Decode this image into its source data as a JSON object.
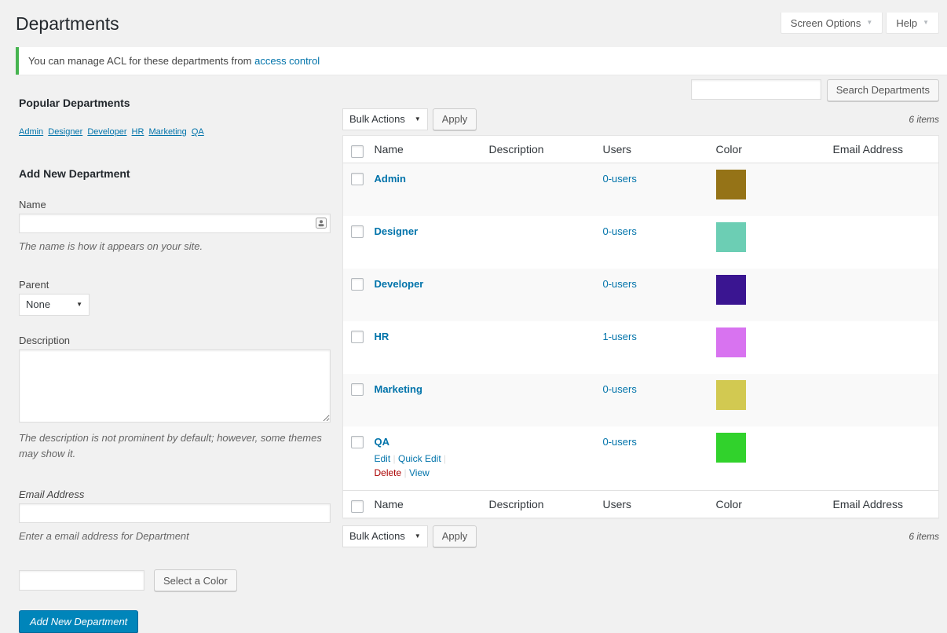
{
  "theme": {
    "background": "#f1f1f1",
    "link_color": "#0073aa",
    "notice_accent": "#46b450",
    "primary_button": "#0085ba"
  },
  "header": {
    "page_title": "Departments",
    "screen_options_label": "Screen Options",
    "help_label": "Help"
  },
  "notice": {
    "message": "You can manage ACL for these departments from",
    "link_label": "access control"
  },
  "sidebar": {
    "popular_title": "Popular Departments",
    "popular_tags": [
      "Admin",
      "Designer",
      "Developer",
      "HR",
      "Marketing",
      "QA"
    ],
    "form": {
      "title": "Add New Department",
      "name_label": "Name",
      "name_value": "",
      "name_help": "The name is how it appears on your site.",
      "parent_label": "Parent",
      "parent_selected": "None",
      "description_label": "Description",
      "description_value": "",
      "description_help": "The description is not prominent by default; however, some themes may show it.",
      "email_label": "Email Address",
      "email_value": "",
      "email_help": "Enter a email address for Department",
      "color_value": "",
      "color_button_label": "Select a Color",
      "submit_label": "Add New Department"
    }
  },
  "list": {
    "search_value": "",
    "search_button_label": "Search Departments",
    "items_count": "6 items",
    "bulk_actions_label": "Bulk Actions",
    "apply_label": "Apply",
    "columns": [
      "Name",
      "Description",
      "Users",
      "Color",
      "Email Address"
    ],
    "rows": [
      {
        "name": "Admin",
        "description": "",
        "users": "0-users",
        "color": "#957317",
        "email": ""
      },
      {
        "name": "Designer",
        "description": "",
        "users": "0-users",
        "color": "#6CCEB4",
        "email": ""
      },
      {
        "name": "Developer",
        "description": "",
        "users": "0-users",
        "color": "#3A1591",
        "email": ""
      },
      {
        "name": "HR",
        "description": "",
        "users": "1-users",
        "color": "#D873F0",
        "email": ""
      },
      {
        "name": "Marketing",
        "description": "",
        "users": "0-users",
        "color": "#D2C951",
        "email": ""
      },
      {
        "name": "QA",
        "description": "",
        "users": "0-users",
        "color": "#31D22C",
        "email": "",
        "actions": [
          "Edit",
          "Quick Edit",
          "Delete",
          "View"
        ]
      }
    ]
  }
}
